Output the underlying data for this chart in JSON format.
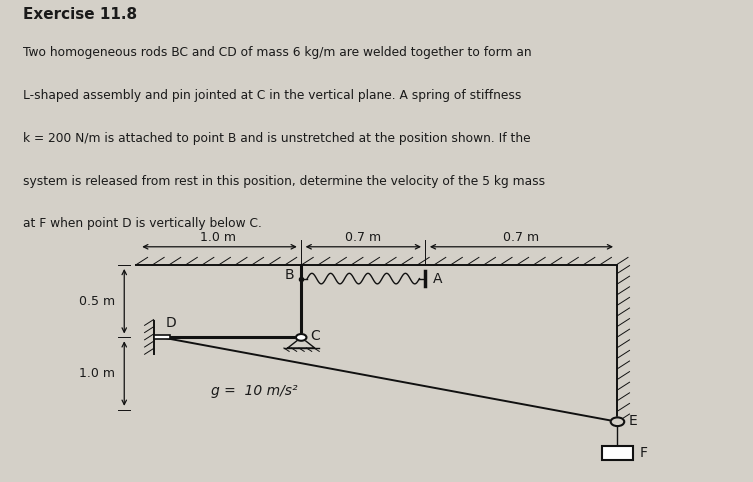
{
  "title": "Exercise 11.8",
  "description_lines": [
    "Two homogeneous rods BC and CD of mass 6 kg/m are welded together to form an",
    "L-shaped assembly and pin jointed at C in the vertical plane. A spring of stiffness",
    "k = 200 N/m is attached to point B and is unstretched at the position shown. If the",
    "system is released from rest in this position, determine the velocity of the 5 kg mass",
    "at F when point D is vertically below C."
  ],
  "bg_color": "#d4d0c8",
  "text_color": "#1a1a1a",
  "dim_1_0m_label": "1.0 m",
  "dim_0_7m_label1": "0.7 m",
  "dim_0_7m_label2": "0.7 m",
  "dim_0_5m_label": "0.5 m",
  "dim_1_0m_bottom_label": "1.0 m",
  "g_label": "g =  10 m/s²",
  "spring_coils": 6,
  "line_color": "#111111"
}
